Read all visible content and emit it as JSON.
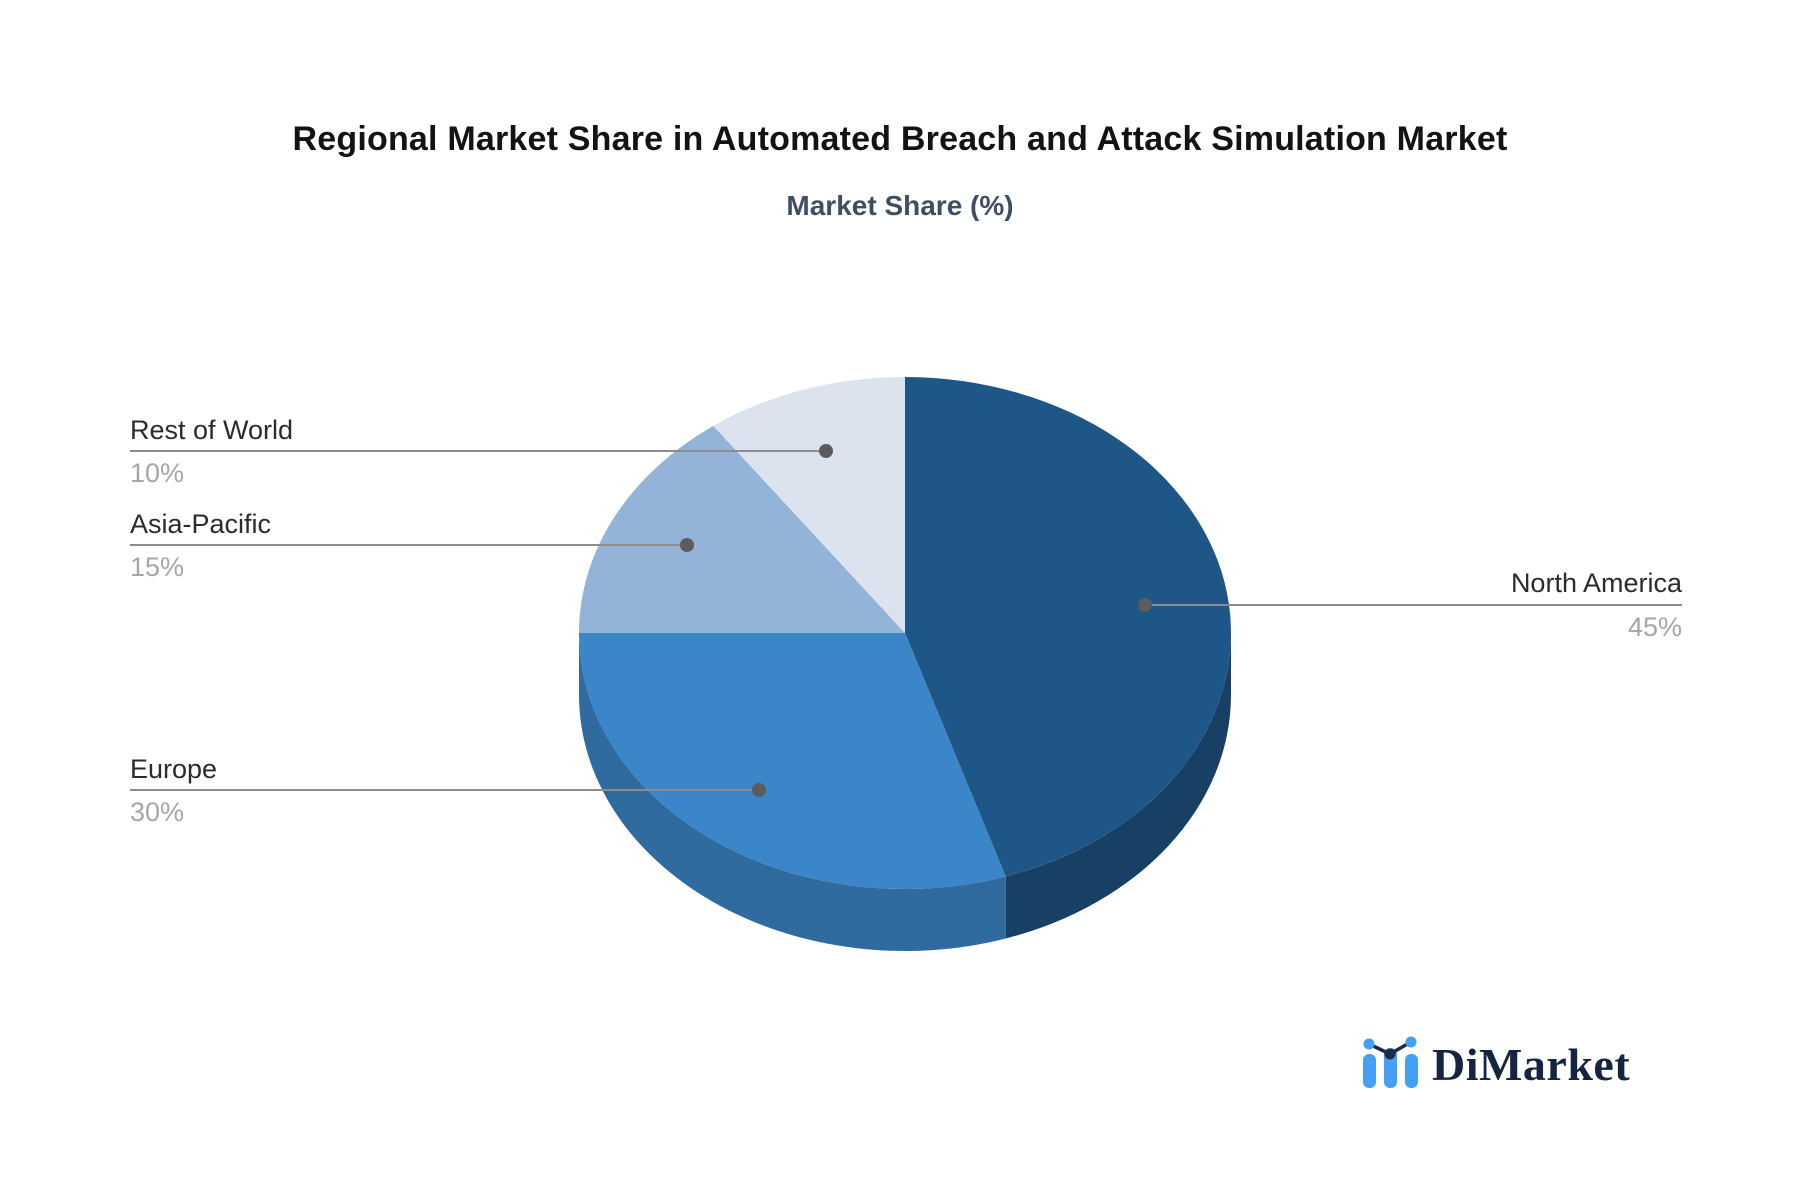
{
  "header": {
    "title": "Regional Market Share in Automated Breach and Attack Simulation Market",
    "subtitle": "Market Share (%)"
  },
  "chart_data": {
    "type": "pie",
    "style": "3d-pie",
    "title": "Regional Market Share in Automated Breach and Attack Simulation Market",
    "subtitle": "Market Share (%)",
    "unit": "%",
    "start_angle": "12-o-clock",
    "direction": "clockwise",
    "categories": [
      "North America",
      "Europe",
      "Asia-Pacific",
      "Rest of World"
    ],
    "values": [
      45,
      30,
      15,
      10
    ],
    "slices": [
      {
        "label": "North America",
        "value": 45,
        "value_label": "45%",
        "color": "#1e5687",
        "side_color": "#183f64"
      },
      {
        "label": "Europe",
        "value": 30,
        "value_label": "30%",
        "color": "#3a86c8",
        "side_color": "#2f6b9e"
      },
      {
        "label": "Asia-Pacific",
        "value": 15,
        "value_label": "15%",
        "color": "#93b4d8",
        "side_color": "#7a9cc0"
      },
      {
        "label": "Rest of World",
        "value": 10,
        "value_label": "10%",
        "color": "#dce3ef",
        "side_color": "#b9c4d6"
      }
    ],
    "legend_position": "callout-labels",
    "leader_line_color": "#8c8c8c",
    "label_name_color": "#2b2b2b",
    "label_value_color": "#a6a6a6"
  },
  "branding": {
    "name": "DiMarket",
    "icon": "bar-chart-logo-icon",
    "icon_bar_color": "#45a0f5",
    "icon_line_color": "#1b2b4a",
    "text_color": "#15253f"
  }
}
